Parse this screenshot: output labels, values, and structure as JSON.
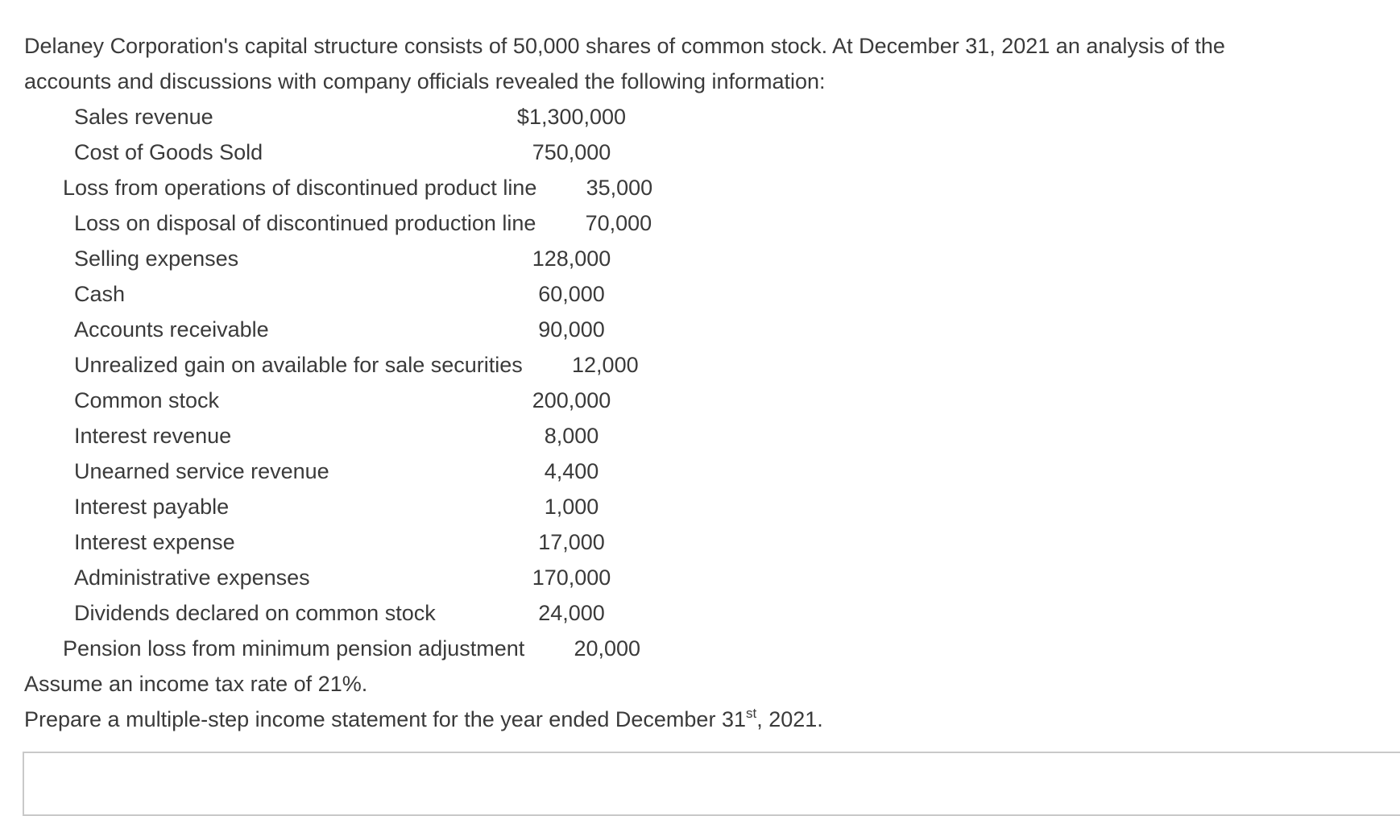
{
  "intro": {
    "line1": "Delaney Corporation's capital structure consists of 50,000 shares of common stock. At December 31, 2021 an analysis of the",
    "line2": "accounts and discussions with company officials revealed the following information:"
  },
  "items": [
    {
      "label": "Sales revenue",
      "value": "$1,300,000"
    },
    {
      "label": "Cost of Goods Sold",
      "value": "750,000"
    },
    {
      "label": "Loss from operations of discontinued product line",
      "value": "35,000"
    },
    {
      "label": "Loss on disposal of discontinued production line",
      "value": "70,000"
    },
    {
      "label": "Selling expenses",
      "value": "128,000"
    },
    {
      "label": "Cash",
      "value": "60,000"
    },
    {
      "label": "Accounts receivable",
      "value": "90,000"
    },
    {
      "label": "Unrealized gain on available for sale securities",
      "value": "12,000"
    },
    {
      "label": "Common stock",
      "value": "200,000"
    },
    {
      "label": "Interest revenue",
      "value": "8,000"
    },
    {
      "label": "Unearned service revenue",
      "value": "4,400"
    },
    {
      "label": "Interest payable",
      "value": "1,000"
    },
    {
      "label": "Interest expense",
      "value": "17,000"
    },
    {
      "label": "Administrative expenses",
      "value": "170,000"
    },
    {
      "label": "Dividends declared on common stock",
      "value": "24,000"
    },
    {
      "label": "Pension loss from minimum pension adjustment",
      "value": "20,000"
    }
  ],
  "tax_note": "Assume an income tax rate of 21%.",
  "task": {
    "prefix": "Prepare a multiple-step income statement for the year ended December 31",
    "superscript": "st",
    "suffix": ", 2021."
  },
  "colors": {
    "text": "#3a3a3a",
    "answer_box_border": "#c9c9c9",
    "background": "#ffffff"
  }
}
